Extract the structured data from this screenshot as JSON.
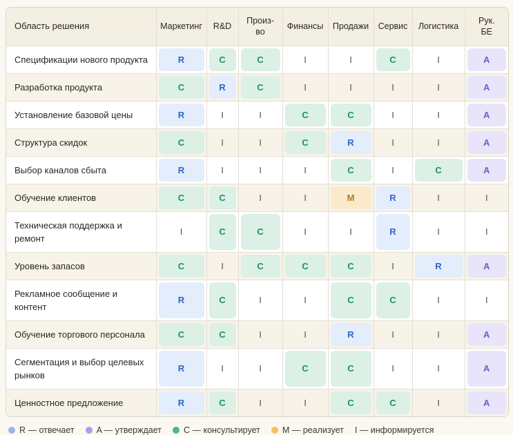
{
  "chart_data": {
    "type": "table",
    "corner_header": "Область решения",
    "columns": [
      "Маркетинг",
      "R&D",
      "Произ-\nво",
      "Финансы",
      "Продажи",
      "Сервис",
      "Логистика",
      "Рук.\nБЕ"
    ],
    "rows": [
      {
        "label": "Спецификации нового продукта",
        "cells": [
          "R",
          "C",
          "C",
          "I",
          "I",
          "C",
          "I",
          "A"
        ]
      },
      {
        "label": "Разработка продукта",
        "cells": [
          "C",
          "R",
          "C",
          "I",
          "I",
          "I",
          "I",
          "A"
        ]
      },
      {
        "label": "Установление базовой цены",
        "cells": [
          "R",
          "I",
          "I",
          "C",
          "C",
          "I",
          "I",
          "A"
        ]
      },
      {
        "label": "Структура скидок",
        "cells": [
          "C",
          "I",
          "I",
          "C",
          "R",
          "I",
          "I",
          "A"
        ]
      },
      {
        "label": "Выбор каналов сбыта",
        "cells": [
          "R",
          "I",
          "I",
          "I",
          "C",
          "I",
          "C",
          "A"
        ]
      },
      {
        "label": "Обучение клиентов",
        "cells": [
          "C",
          "C",
          "I",
          "I",
          "M",
          "R",
          "I",
          "I"
        ]
      },
      {
        "label": "Техническая поддержка и ремонт",
        "cells": [
          "I",
          "C",
          "C",
          "I",
          "I",
          "R",
          "I",
          "I"
        ]
      },
      {
        "label": "Уровень запасов",
        "cells": [
          "C",
          "I",
          "C",
          "C",
          "C",
          "I",
          "R",
          "A"
        ]
      },
      {
        "label": "Рекламное сообщение и контент",
        "cells": [
          "R",
          "C",
          "I",
          "I",
          "C",
          "C",
          "I",
          "I"
        ]
      },
      {
        "label": "Обучение торгового персонала",
        "cells": [
          "C",
          "C",
          "I",
          "I",
          "R",
          "I",
          "I",
          "A"
        ]
      },
      {
        "label": "Сегментация и выбор целевых рынков",
        "cells": [
          "R",
          "I",
          "I",
          "C",
          "C",
          "I",
          "I",
          "A"
        ]
      },
      {
        "label": "Ценностное предложение",
        "cells": [
          "R",
          "C",
          "I",
          "I",
          "C",
          "C",
          "I",
          "A"
        ]
      }
    ],
    "legend": [
      {
        "code": "R",
        "label": "R — отвечает",
        "dot": "#96b6ee"
      },
      {
        "code": "A",
        "label": "A — утверждает",
        "dot": "#a99df0"
      },
      {
        "code": "C",
        "label": "C — консультирует",
        "dot": "#45b88e"
      },
      {
        "code": "M",
        "label": "M — реализует",
        "dot": "#f2c356"
      },
      {
        "code": "I",
        "label": "I — информируется",
        "dot": ""
      }
    ]
  },
  "colors": {
    "R": {
      "bg": "#e3edfb",
      "fg": "#2e66c4"
    },
    "A": {
      "bg": "#e8e4fa",
      "fg": "#6e5ecd"
    },
    "C": {
      "bg": "#dcf0e5",
      "fg": "#179367"
    },
    "M": {
      "bg": "#faeacb",
      "fg": "#b17a1d"
    },
    "I": {
      "bg": "",
      "fg": "#56514a"
    }
  }
}
